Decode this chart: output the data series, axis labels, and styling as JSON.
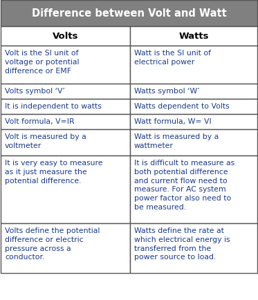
{
  "title": "Difference between Volt and Watt",
  "title_bg": "#808080",
  "title_color": "#ffffff",
  "header_bg": "#ffffff",
  "text_color": "#1a3a8a",
  "header_text_color": "#000000",
  "cell_bg": "#ffffff",
  "border_color": "#555555",
  "col_headers": [
    "Volts",
    "Watts"
  ],
  "rows": [
    [
      "Volt is the SI unit of\nvoltage or potential\ndifference or EMF",
      "Watt is the SI unit of\nelectrical power"
    ],
    [
      "Volts symbol ‘V’",
      "Watts symbol ‘W’"
    ],
    [
      "It is independent to watts",
      "Watts dependent to Volts"
    ],
    [
      "Volt formula, V=IR",
      "Watt formula, W= VI"
    ],
    [
      "Volt is measured by a\nvoltmeter",
      "Watt is measured by a\nwattmeter"
    ],
    [
      "It is very easy to measure\nas it just measure the\npotential difference.",
      "It is difficult to measure as\nboth potential difference\nand current flow need to\nmeasure. For AC system\npower factor also need to\nbe measured."
    ],
    [
      "Volts define the potential\ndifference or electric\npressure across a\nconductor.",
      "Watts define the rate at\nwhich electrical energy is\ntransferred from the\npower source to load."
    ]
  ],
  "figsize": [
    3.73,
    4.35
  ],
  "dpi": 100,
  "font_size": 7.8,
  "header_font_size": 9.5,
  "title_font_size": 10.5
}
